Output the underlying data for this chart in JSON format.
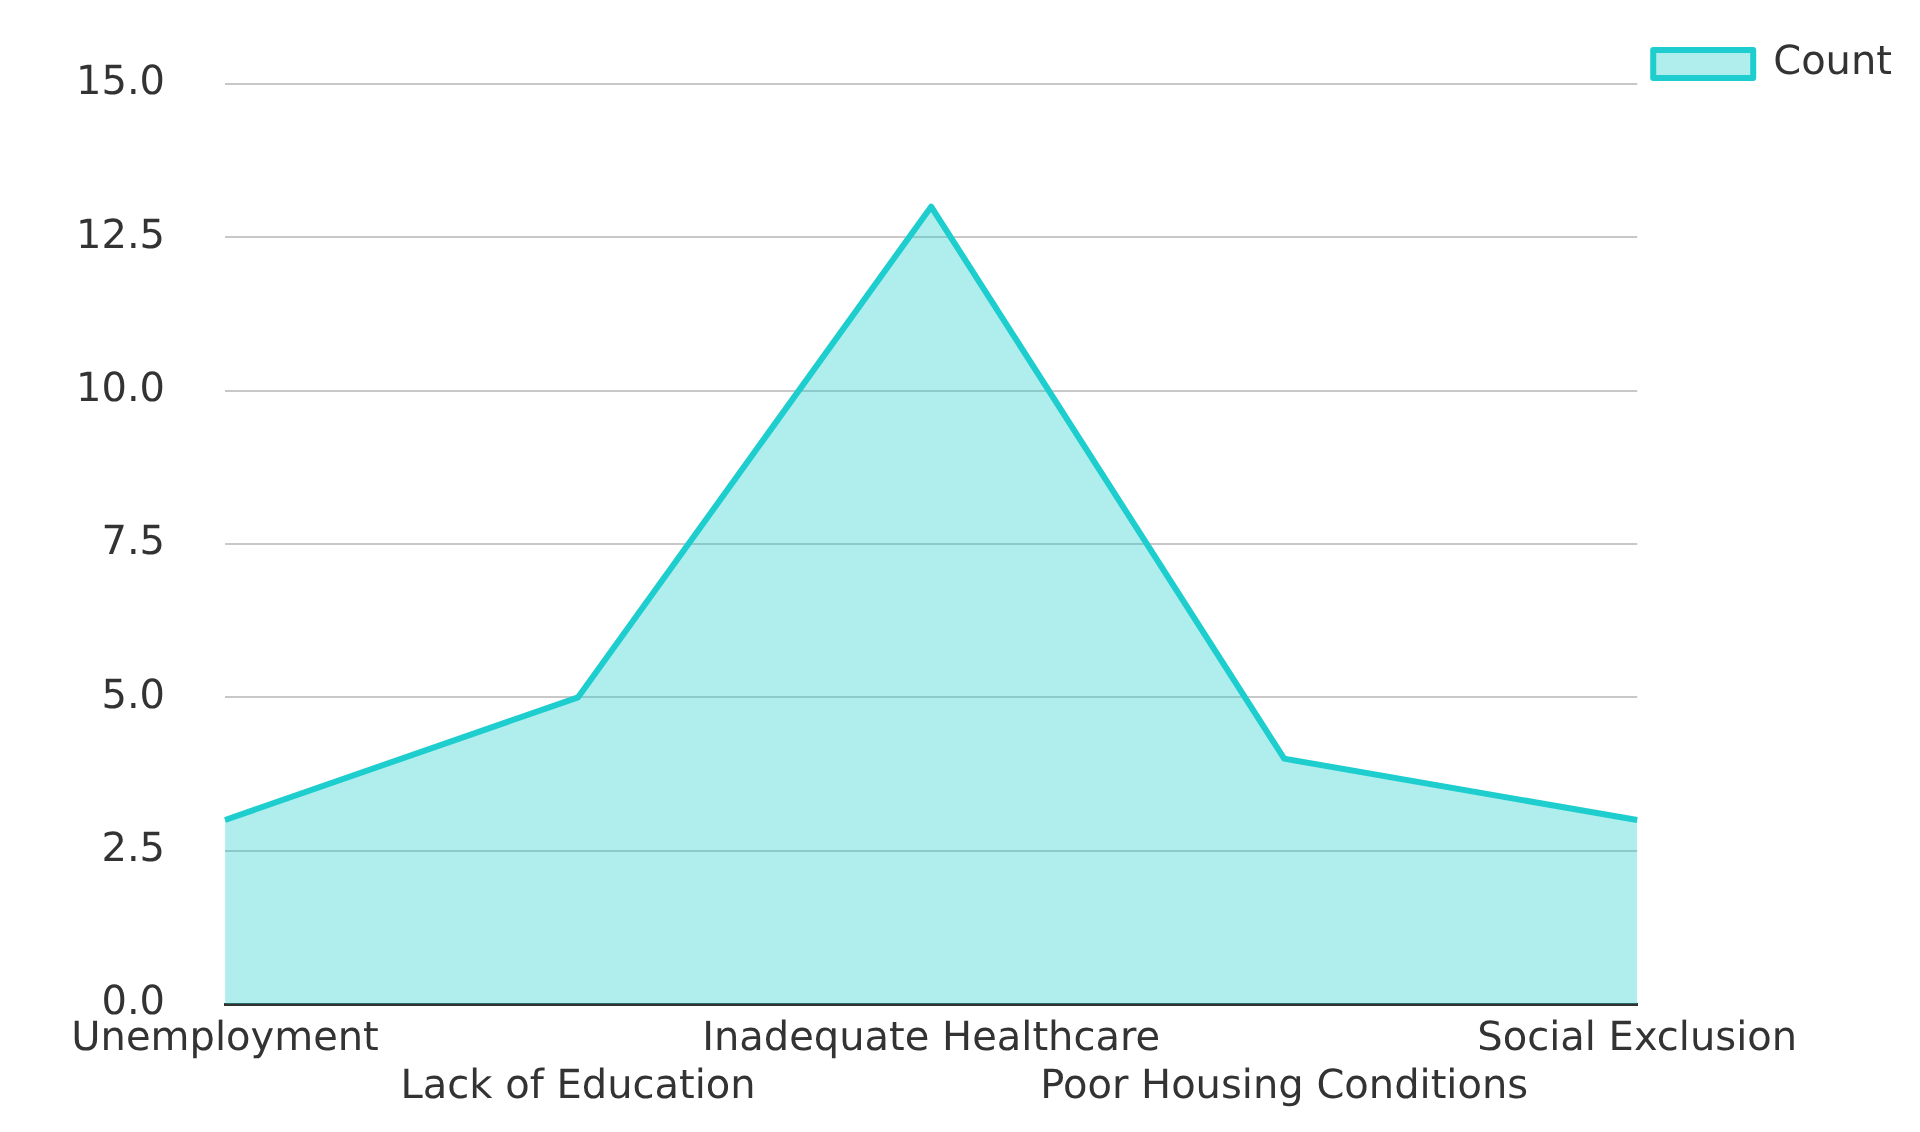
{
  "chart_data": {
    "type": "area",
    "categories": [
      "Unemployment",
      "Lack of Education",
      "Inadequate Healthcare",
      "Poor Housing Conditions",
      "Social Exclusion"
    ],
    "series": [
      {
        "name": "Count",
        "color": "#1ecece",
        "values": [
          3,
          5,
          13,
          4,
          3
        ]
      }
    ],
    "ylim": [
      0,
      15
    ],
    "yticks": [
      {
        "value": 0,
        "label": "0.0"
      },
      {
        "value": 2.5,
        "label": "2.5"
      },
      {
        "value": 5,
        "label": "5.0"
      },
      {
        "value": 7.5,
        "label": "7.5"
      },
      {
        "value": 10,
        "label": "10.0"
      },
      {
        "value": 12.5,
        "label": "12.5"
      },
      {
        "value": 15,
        "label": "15.0"
      }
    ],
    "grid": "y",
    "legend": "top right",
    "marker": "none"
  }
}
